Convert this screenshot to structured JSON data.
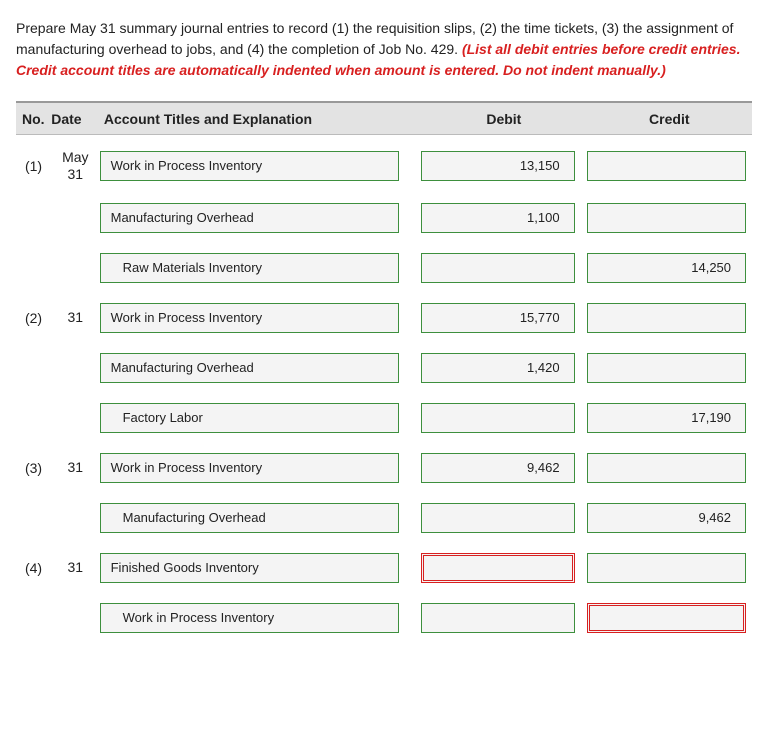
{
  "instructions": {
    "part1": "Prepare May 31 summary journal entries to record (1) the requisition slips, (2) the time tickets, (3) the assignment of manufacturing overhead to jobs, and (4) the completion of Job No. 429. ",
    "part2": "(List all debit entries before credit entries. Credit account titles are automatically indented when amount is entered. Do not indent manually.)"
  },
  "headers": {
    "no": "No.",
    "date": "Date",
    "acct": "Account Titles and Explanation",
    "debit": "Debit",
    "credit": "Credit"
  },
  "rows": [
    {
      "no": "(1)",
      "date": "May\n31",
      "acct": "Work in Process Inventory",
      "debit": "13,150",
      "credit": "",
      "indent": false,
      "errDebit": false,
      "errCredit": false
    },
    {
      "no": "",
      "date": "",
      "acct": "Manufacturing Overhead",
      "debit": "1,100",
      "credit": "",
      "indent": false,
      "errDebit": false,
      "errCredit": false
    },
    {
      "no": "",
      "date": "",
      "acct": "Raw Materials Inventory",
      "debit": "",
      "credit": "14,250",
      "indent": true,
      "errDebit": false,
      "errCredit": false
    },
    {
      "no": "(2)",
      "date": "31",
      "acct": "Work in Process Inventory",
      "debit": "15,770",
      "credit": "",
      "indent": false,
      "errDebit": false,
      "errCredit": false
    },
    {
      "no": "",
      "date": "",
      "acct": "Manufacturing Overhead",
      "debit": "1,420",
      "credit": "",
      "indent": false,
      "errDebit": false,
      "errCredit": false
    },
    {
      "no": "",
      "date": "",
      "acct": "Factory Labor",
      "debit": "",
      "credit": "17,190",
      "indent": true,
      "errDebit": false,
      "errCredit": false
    },
    {
      "no": "(3)",
      "date": "31",
      "acct": "Work in Process Inventory",
      "debit": "9,462",
      "credit": "",
      "indent": false,
      "errDebit": false,
      "errCredit": false
    },
    {
      "no": "",
      "date": "",
      "acct": "Manufacturing Overhead",
      "debit": "",
      "credit": "9,462",
      "indent": true,
      "errDebit": false,
      "errCredit": false
    },
    {
      "no": "(4)",
      "date": "31",
      "acct": "Finished Goods Inventory",
      "debit": "",
      "credit": "",
      "indent": false,
      "errDebit": true,
      "errCredit": false
    },
    {
      "no": "",
      "date": "",
      "acct": "Work in Process Inventory",
      "debit": "",
      "credit": "",
      "indent": true,
      "errDebit": false,
      "errCredit": true
    }
  ]
}
